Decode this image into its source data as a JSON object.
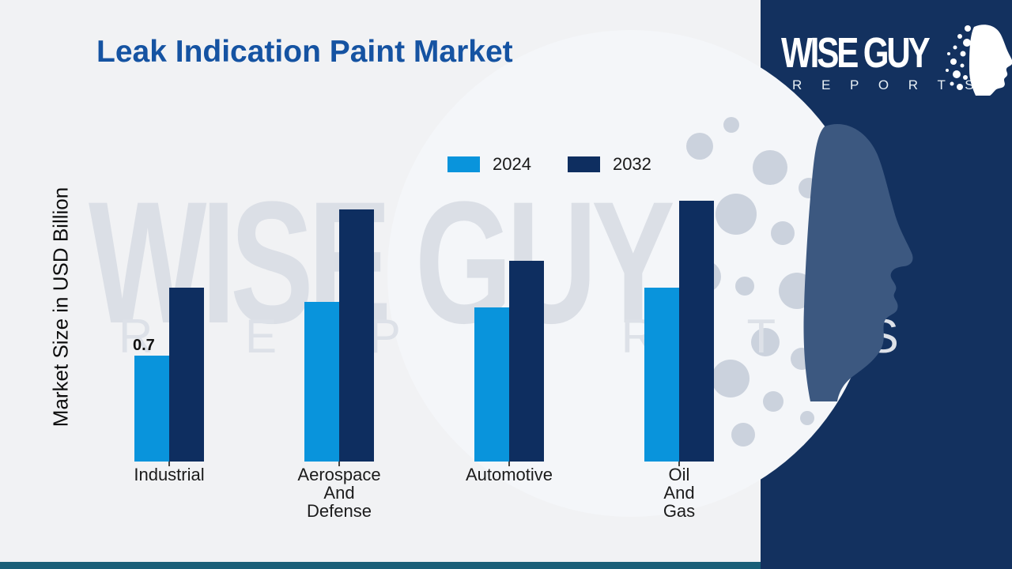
{
  "page": {
    "background_color": "#f1f2f4",
    "bottom_strip_color": "#1a5f78",
    "side_panel_color": "#13315f"
  },
  "header": {
    "title": "Leak Indication Paint Market",
    "title_color": "#1553a2"
  },
  "branding": {
    "logo": {
      "line1": "WISE GUY",
      "line2": "R E P O R T S",
      "head_icon_color": "#ffffff",
      "face_silhouette_color": "#3c5880"
    },
    "watermark": {
      "line1": "WISE GUY",
      "line2": "R E P O R T S"
    }
  },
  "chart_data": {
    "type": "bar",
    "title": "Leak Indication Paint Market",
    "xlabel": "",
    "ylabel": "Market Size in USD Billion",
    "ylim": [
      0,
      2
    ],
    "grid": false,
    "legend_position": "top",
    "categories": [
      "Industrial",
      "Aerospace\nAnd\nDefense",
      "Automotive",
      "Oil\nAnd\nGas"
    ],
    "series": [
      {
        "name": "2024",
        "color": "#0994dc",
        "values": [
          0.7,
          1.06,
          1.02,
          1.15
        ]
      },
      {
        "name": "2032",
        "color": "#0e2e60",
        "values": [
          1.15,
          1.67,
          1.33,
          1.73
        ]
      }
    ],
    "data_labels": [
      {
        "series": "2024",
        "category_index": 0,
        "text": "0.7"
      }
    ]
  }
}
